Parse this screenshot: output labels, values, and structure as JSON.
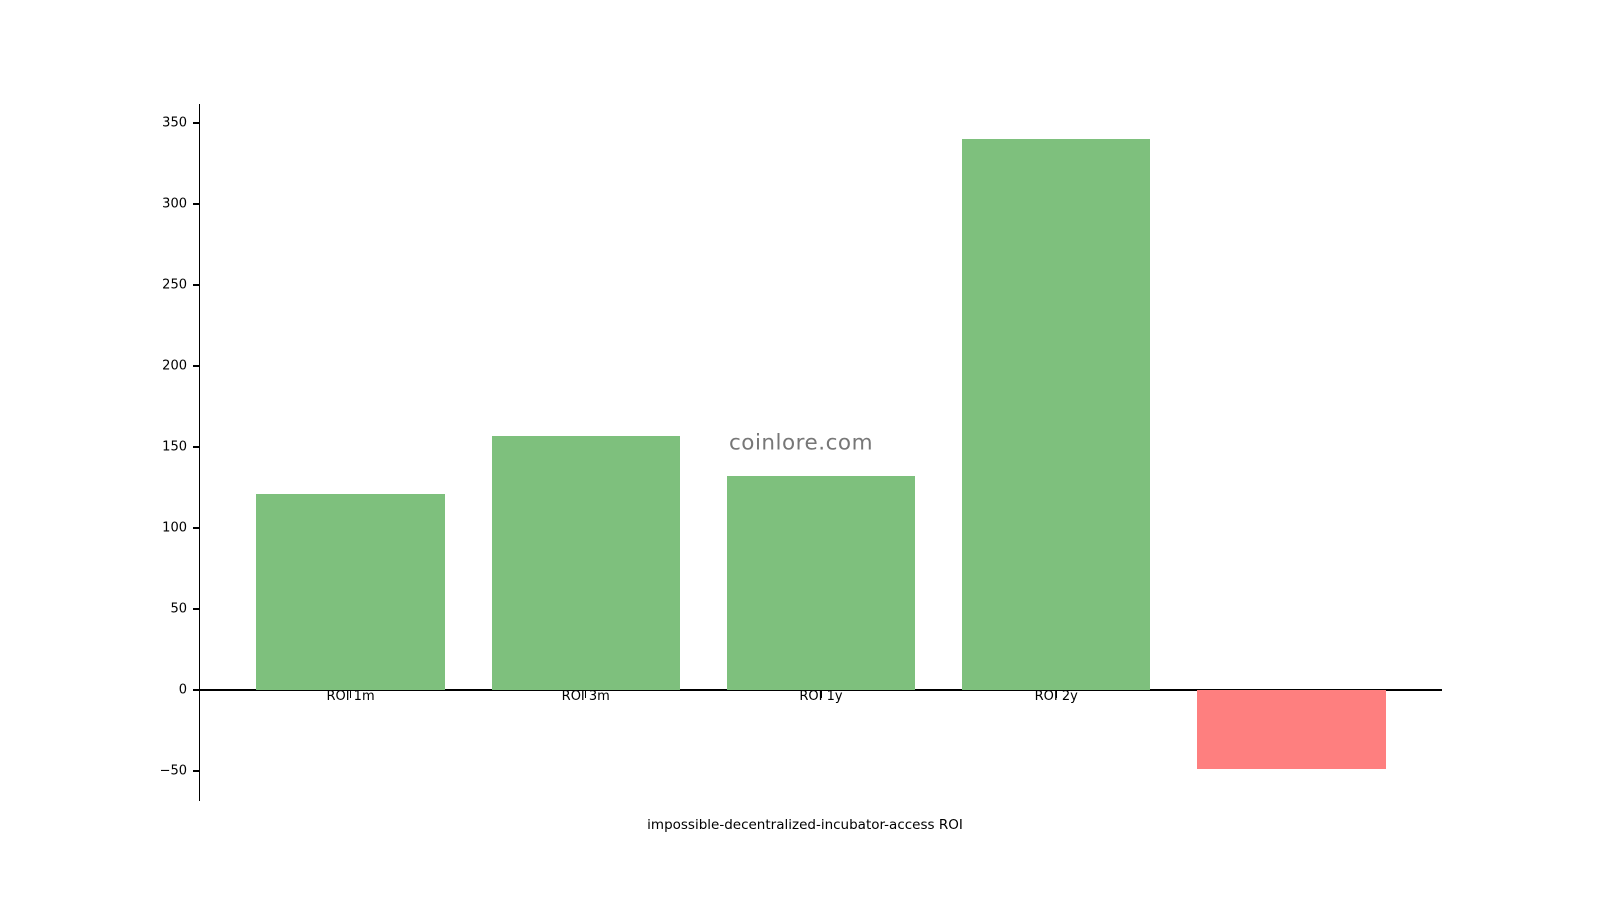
{
  "page": {
    "background_color": "#ffffff"
  },
  "chart_data": {
    "type": "bar",
    "title": "impossible-decentralized-incubator-access ROI",
    "watermark": "coinlore.com",
    "watermark_color": "#777777",
    "categories": [
      "ROI 1m",
      "ROI 3m",
      "ROI 1y",
      "ROI 2y",
      ""
    ],
    "values": [
      121,
      157,
      132,
      340,
      -49
    ],
    "bar_colors": [
      "#7ec07d",
      "#7ec07d",
      "#7ec07d",
      "#7ec07d",
      "#fe7f7f"
    ],
    "positive_color": "#7ec07d",
    "negative_color": "#fe7f7f",
    "axis_color": "#000000",
    "y_ticks": [
      350,
      300,
      250,
      200,
      150,
      100,
      50,
      0,
      -50
    ],
    "ylim": [
      -68.5,
      359.5
    ],
    "xlim": [
      -0.64,
      4.64
    ],
    "bar_width": 0.8,
    "grid": false,
    "legend": null,
    "xlabel": "impossible-decentralized-incubator-access ROI",
    "ylabel": ""
  }
}
